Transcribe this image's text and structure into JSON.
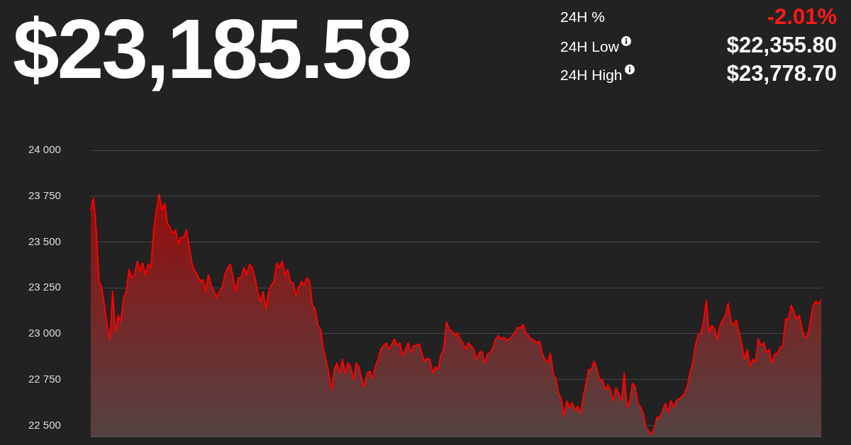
{
  "chart_data": {
    "type": "area",
    "title": "$23,185.58",
    "annotations": [
      "24H %",
      "-2.01%",
      "24H Low",
      "$22,355.80",
      "24H High",
      "$23,778.70"
    ],
    "categories": [
      null,
      null,
      null,
      null,
      null,
      null,
      null,
      null,
      null,
      null,
      null,
      null,
      null,
      null,
      null,
      null,
      null,
      null,
      null,
      null,
      null,
      null,
      null,
      null,
      null,
      null,
      null,
      null,
      null,
      null,
      null,
      null,
      null,
      null,
      null,
      null,
      null,
      null,
      null,
      null,
      null,
      null,
      null,
      null,
      null,
      null,
      null,
      null,
      null,
      null,
      null,
      null,
      null,
      null,
      null,
      null,
      null,
      null,
      null,
      null,
      null,
      null,
      null,
      null,
      null,
      null,
      null,
      null,
      null,
      null,
      null,
      null,
      null,
      null,
      null,
      null,
      null,
      null,
      null,
      null,
      null,
      null,
      null,
      null,
      null,
      null,
      null,
      null,
      null,
      null,
      null,
      null,
      null,
      null,
      null,
      null,
      null,
      null,
      null,
      null,
      null,
      null,
      null,
      null,
      null,
      null,
      null,
      null,
      null,
      null,
      null,
      null,
      null,
      null,
      null,
      null,
      null,
      null,
      null,
      null,
      null,
      null,
      null,
      null,
      null,
      null,
      null,
      null,
      null,
      null,
      null,
      null,
      null,
      null,
      null,
      null,
      null,
      null,
      null,
      null,
      null,
      null,
      null,
      null,
      null,
      null,
      null,
      null,
      null,
      null,
      null,
      null,
      null,
      null,
      null,
      null,
      null,
      null,
      null,
      null,
      null,
      null,
      null,
      null,
      null,
      null,
      null,
      null,
      null,
      null,
      null,
      null,
      null,
      null,
      null,
      null,
      null,
      null,
      null,
      null,
      null,
      null,
      null,
      null,
      null,
      null,
      null,
      null,
      null,
      null,
      null,
      null,
      null,
      null,
      null,
      null,
      null,
      null,
      null,
      null,
      null,
      null,
      null,
      null,
      null,
      null,
      null,
      null,
      null,
      null,
      null,
      null,
      null,
      null,
      null,
      null,
      null,
      null,
      null,
      null,
      null,
      null,
      null,
      null,
      null,
      null,
      null,
      null,
      null,
      null,
      null,
      null,
      null,
      null,
      null,
      null,
      null,
      null,
      null,
      null,
      null,
      null,
      null,
      null,
      null,
      null,
      null,
      null,
      null,
      null,
      null,
      null,
      null,
      null,
      null,
      null,
      null,
      null,
      null,
      null,
      null,
      null,
      null,
      null,
      null,
      null,
      null,
      null
    ],
    "series": [
      {
        "color": "#ff0000",
        "values": [
          23675,
          23740,
          23565,
          23285,
          23250,
          23155,
          23045,
          22970,
          23230,
          23005,
          23100,
          23065,
          23195,
          23230,
          23350,
          23305,
          23320,
          23395,
          23340,
          23385,
          23320,
          23380,
          23360,
          23565,
          23675,
          23760,
          23675,
          23710,
          23600,
          23580,
          23545,
          23565,
          23490,
          23525,
          23525,
          23565,
          23470,
          23380,
          23340,
          23320,
          23285,
          23295,
          23230,
          23320,
          23265,
          23230,
          23195,
          23230,
          23250,
          23320,
          23360,
          23380,
          23305,
          23230,
          23305,
          23305,
          23360,
          23320,
          23380,
          23360,
          23305,
          23230,
          23175,
          23230,
          23135,
          23230,
          23265,
          23285,
          23385,
          23360,
          23395,
          23320,
          23350,
          23285,
          23275,
          23210,
          23250,
          23285,
          23265,
          23305,
          23285,
          23155,
          23135,
          23045,
          23025,
          22915,
          22860,
          22785,
          22695,
          22805,
          22840,
          22785,
          22860,
          22785,
          22840,
          22820,
          22750,
          22840,
          22820,
          22755,
          22710,
          22785,
          22795,
          22755,
          22820,
          22860,
          22915,
          22935,
          22950,
          22915,
          22940,
          22970,
          22935,
          22950,
          22880,
          22915,
          22950,
          22895,
          22935,
          22935,
          22945,
          22895,
          22850,
          22865,
          22860,
          22785,
          22820,
          22805,
          22885,
          22915,
          23065,
          23025,
          23015,
          22990,
          23005,
          22970,
          22950,
          22915,
          22950,
          22935,
          22915,
          22860,
          22895,
          22905,
          22840,
          22890,
          22895,
          22925,
          22970,
          22990,
          22970,
          22980,
          22965,
          22970,
          22990,
          23005,
          23035,
          23030,
          23050,
          23005,
          22990,
          22970,
          22965,
          22950,
          22960,
          22895,
          22860,
          22840,
          22895,
          22785,
          22755,
          22675,
          22645,
          22550,
          22635,
          22595,
          22625,
          22580,
          22605,
          22565,
          22655,
          22730,
          22805,
          22805,
          22850,
          22805,
          22750,
          22750,
          22695,
          22720,
          22695,
          22635,
          22705,
          22675,
          22635,
          22785,
          22600,
          22635,
          22730,
          22710,
          22620,
          22600,
          22565,
          22490,
          22470,
          22450,
          22490,
          22545,
          22545,
          22580,
          22620,
          22570,
          22635,
          22600,
          22635,
          22645,
          22655,
          22675,
          22710,
          22785,
          22840,
          22935,
          22990,
          23005,
          23065,
          23180,
          23005,
          23045,
          23025,
          22970,
          23045,
          23075,
          23100,
          23165,
          23065,
          23045,
          23075,
          23005,
          22940,
          22860,
          22915,
          22820,
          22860,
          22850,
          22970,
          22935,
          22950,
          22895,
          22915,
          22840,
          22890,
          22890,
          22925,
          22935,
          23080,
          23080,
          23155,
          23120,
          23080,
          23100,
          23025,
          22980,
          22990,
          23065,
          23155,
          23175,
          23165,
          23185
        ]
      }
    ],
    "ylim": [
      22440,
      24000
    ],
    "yticks": [
      {
        "value": 22500,
        "label": "22 500"
      },
      {
        "value": 22750,
        "label": "22 750"
      },
      {
        "value": 23000,
        "label": "23 000"
      },
      {
        "value": 23250,
        "label": "23 250"
      },
      {
        "value": 23500,
        "label": "23 500"
      },
      {
        "value": 23750,
        "label": "23 750"
      },
      {
        "value": 24000,
        "label": "24 000"
      }
    ],
    "grid": "y",
    "legend": false,
    "tick_labels": "y"
  }
}
